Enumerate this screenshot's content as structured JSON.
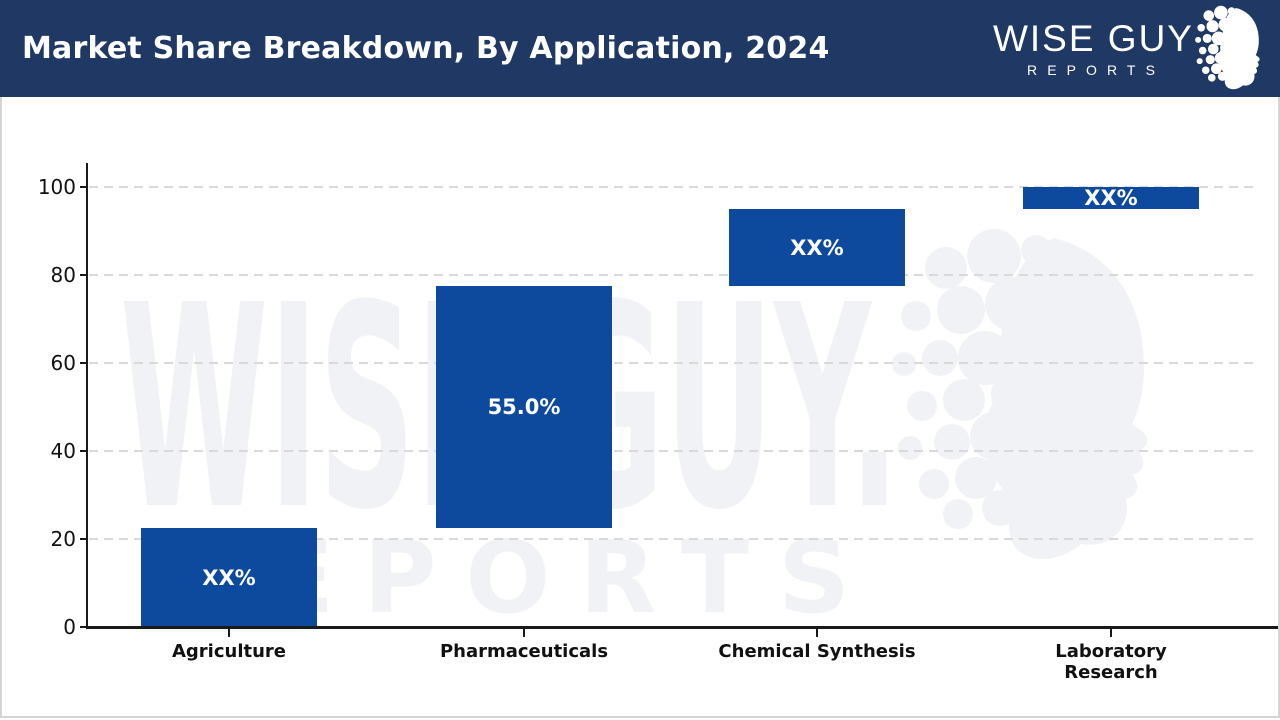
{
  "page": {
    "frame_color": "#d4d4d4",
    "background": "#ffffff"
  },
  "header": {
    "title": "Market Share Breakdown, By Application, 2024",
    "background": "#203864",
    "logo": {
      "line1": "WISE GUY",
      "line2": "REPORTS"
    }
  },
  "watermark": {
    "line1": "WISE GUY.",
    "line2": "REPORTS",
    "color": "#f1f2f5"
  },
  "chart_data": {
    "type": "bar",
    "variant": "floating-waterfall",
    "title": "Market Share Breakdown, By Application, 2024",
    "categories": [
      "Agriculture",
      "Pharmaceuticals",
      "Chemical Synthesis",
      "Laboratory Research"
    ],
    "category_label_lines": [
      [
        "Agriculture"
      ],
      [
        "Pharmaceuticals"
      ],
      [
        "Chemical Synthesis"
      ],
      [
        "Laboratory",
        "Research"
      ]
    ],
    "series": [
      {
        "name": "Market share (%)",
        "segments": [
          {
            "category": "Agriculture",
            "start": 0,
            "end": 22.5,
            "label": "XX%"
          },
          {
            "category": "Pharmaceuticals",
            "start": 22.5,
            "end": 77.5,
            "label": "55.0%"
          },
          {
            "category": "Chemical Synthesis",
            "start": 77.5,
            "end": 95,
            "label": "XX%"
          },
          {
            "category": "Laboratory Research",
            "start": 95,
            "end": 100,
            "label": "XX%"
          }
        ]
      }
    ],
    "ylim": [
      0,
      100
    ],
    "yticks": [
      0,
      20,
      40,
      60,
      80,
      100
    ],
    "grid": {
      "horizontal": true,
      "style": "dashed",
      "color": "#d9d9d9"
    },
    "bar_color": "#0d4a9e",
    "axis_color": "#1a1a1a",
    "legend": null
  }
}
